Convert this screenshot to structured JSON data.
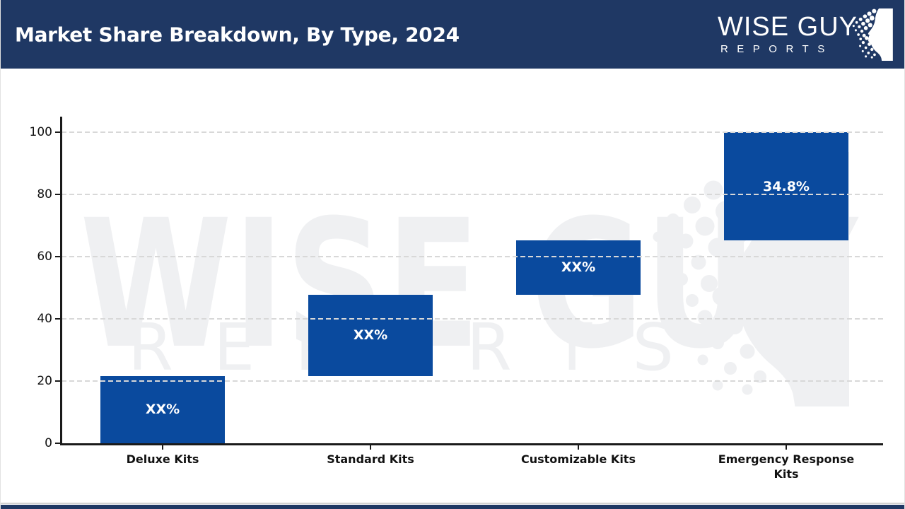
{
  "header": {
    "title": "Market Share Breakdown, By Type, 2024",
    "bg_color": "#1f3864",
    "text_color": "#ffffff",
    "logo": {
      "name": "WISE GUY",
      "tagline": "REPORTS"
    }
  },
  "watermark": {
    "name": "WISE GUY",
    "tagline": "R E P O R T S"
  },
  "chart_data": {
    "type": "bar",
    "subtype": "waterfall",
    "title": "Market Share Breakdown, By Type, 2024",
    "xlabel": "",
    "ylabel": "",
    "ylim": [
      0,
      100
    ],
    "yticks": [
      0,
      20,
      40,
      60,
      80,
      100
    ],
    "grid": "horizontal-dashed",
    "grid_color": "#d8d8d8",
    "axis_color": "#1a1a1a",
    "bar_color": "#0a4a9e",
    "label_color": "#ffffff",
    "legend": "none",
    "categories": [
      "Deluxe Kits",
      "Standard Kits",
      "Customizable Kits",
      "Emergency Response\nKits"
    ],
    "segments": [
      {
        "category": "Deluxe Kits",
        "start": 0,
        "end": 21.7,
        "label": "XX%"
      },
      {
        "category": "Standard Kits",
        "start": 21.7,
        "end": 47.8,
        "label": "XX%"
      },
      {
        "category": "Customizable Kits",
        "start": 47.8,
        "end": 65.2,
        "label": "XX%"
      },
      {
        "category": "Emergency Response Kits",
        "start": 65.2,
        "end": 100,
        "label": "34.8%"
      }
    ]
  }
}
